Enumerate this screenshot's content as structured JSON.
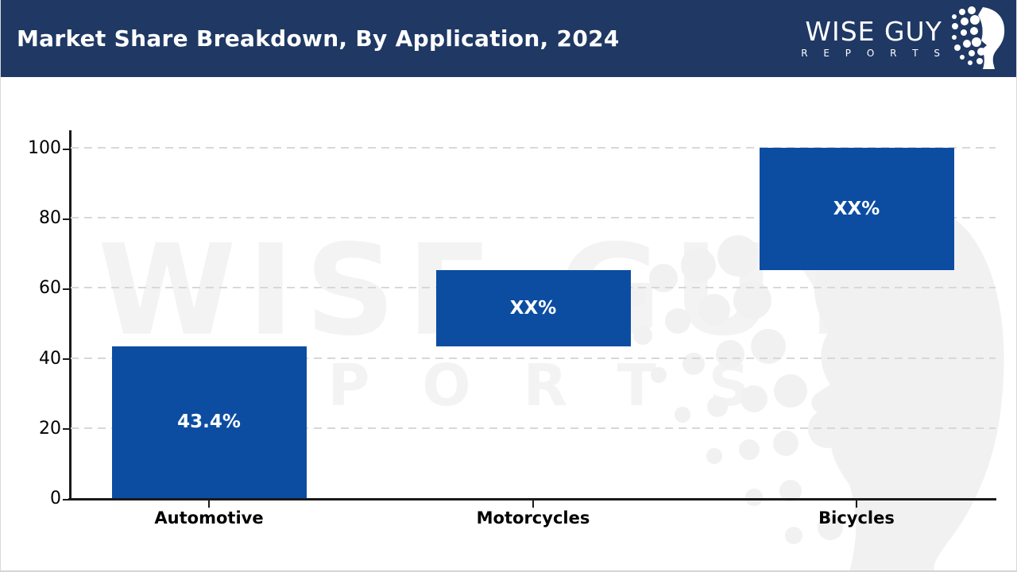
{
  "header": {
    "title": "Market Share Breakdown, By Application, 2024",
    "bg_color": "#1f3864",
    "logo": {
      "line1": "WISE GUY",
      "line2": "R E P O R T S"
    }
  },
  "watermark": {
    "line1": "WISE GUY",
    "line2": "REPORTS"
  },
  "chart_data": {
    "type": "bar",
    "variant": "waterfall",
    "title": "Market Share Breakdown, By Application, 2024",
    "categories": [
      "Automotive",
      "Motorcycles",
      "Bicycles"
    ],
    "series": [
      {
        "name": "Market share (%)",
        "segments": [
          {
            "category": "Automotive",
            "start": 0,
            "end": 43.4,
            "label": "43.4%"
          },
          {
            "category": "Motorcycles",
            "start": 43.4,
            "end": 65.1,
            "label": "XX%"
          },
          {
            "category": "Bicycles",
            "start": 65.1,
            "end": 100,
            "label": "XX%"
          }
        ]
      }
    ],
    "xlabel": "",
    "ylabel": "",
    "ylim": [
      0,
      105
    ],
    "yticks": [
      0,
      20,
      40,
      60,
      80,
      100
    ],
    "grid": "horizontal-dashed",
    "legend": false,
    "bar_color": "#0c4da2",
    "bar_label_color": "#ffffff",
    "axis_color": "#1a1a1a",
    "grid_color": "#d8d8d8",
    "tick_label_color": "#000000",
    "watermark_text": "WISE GUY REPORTS"
  }
}
